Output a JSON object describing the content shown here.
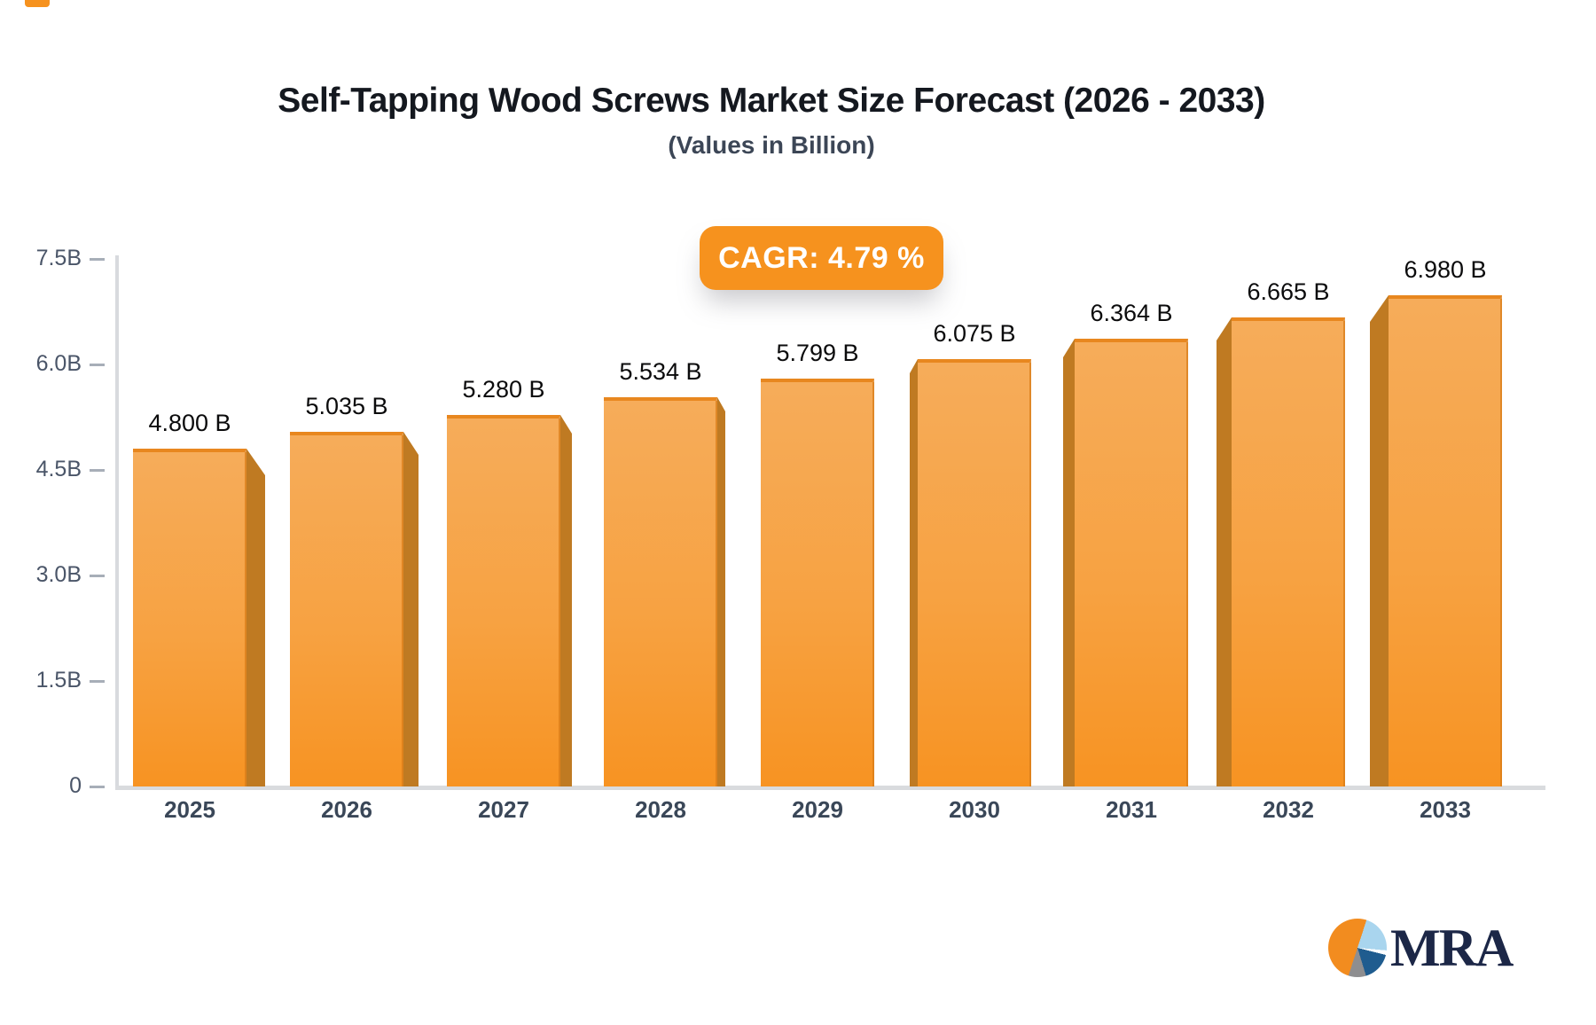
{
  "header": {
    "title": "Self-Tapping Wood Screws Market Size Forecast (2026 - 2033)",
    "subtitle": "(Values in Billion)",
    "cagr_label": "CAGR: 4.79 %"
  },
  "footer": {
    "logo_text": "MRA"
  },
  "colors": {
    "bar_gradient_top": "#f6ac5a",
    "bar_gradient_bottom": "#f79322",
    "bar_top_border": "#e8871f",
    "bar_side_shadow": "#bf7a22",
    "cagr_pill": "#f6921e",
    "axis_gray": "#d8dade",
    "tick_text": "#4a5568",
    "year_text": "#3a4758",
    "title_text": "#14181f",
    "logo_navy": "#1c2747",
    "logo_light_blue": "#a9d5ee",
    "logo_steel_blue": "#1f5c8f",
    "logo_gray": "#8e8e90",
    "logo_orange": "#f28c1f"
  },
  "chart_data": {
    "type": "bar",
    "title": "Self-Tapping Wood Screws Market Size Forecast (2026 - 2033)",
    "subtitle": "(Values in Billion)",
    "annotation": "CAGR: 4.79 %",
    "categories": [
      "2025",
      "2026",
      "2027",
      "2028",
      "2029",
      "2030",
      "2031",
      "2032",
      "2033"
    ],
    "values": [
      4.8,
      5.035,
      5.28,
      5.534,
      5.799,
      6.075,
      6.364,
      6.665,
      6.98
    ],
    "value_labels": [
      "4.800 B",
      "5.035 B",
      "5.280 B",
      "5.534 B",
      "5.799 B",
      "6.075 B",
      "6.364 B",
      "6.665 B",
      "6.980 B"
    ],
    "xlabel": "",
    "ylabel": "",
    "ylim": [
      0,
      7.5
    ],
    "grid": false,
    "legend": false,
    "yticks": [
      {
        "value": 7.5,
        "label": "7.5B"
      },
      {
        "value": 6.0,
        "label": "6.0B"
      },
      {
        "value": 4.5,
        "label": "4.5B"
      },
      {
        "value": 3.0,
        "label": "3.0B"
      },
      {
        "value": 1.5,
        "label": "1.5B"
      },
      {
        "value": 0,
        "label": "0"
      }
    ]
  }
}
